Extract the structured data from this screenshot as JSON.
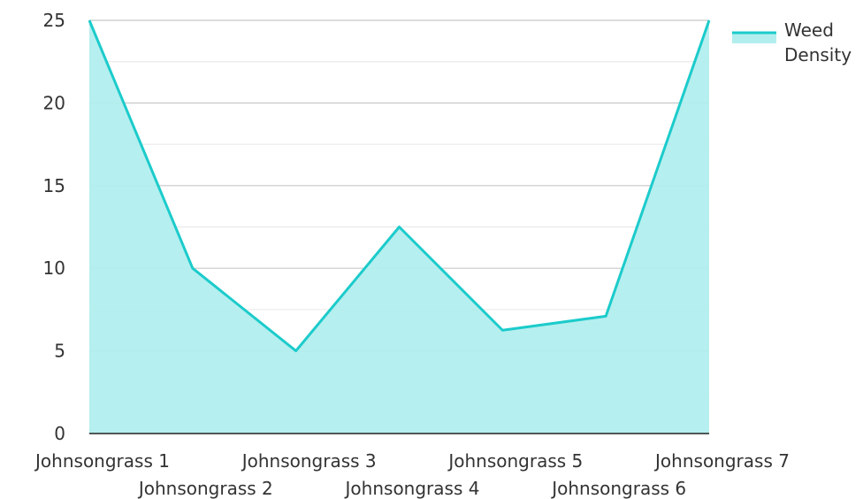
{
  "chart_data": {
    "type": "area",
    "categories": [
      "Johnsongrass 1",
      "Johnsongrass 2",
      "Johnsongrass 3",
      "Johnsongrass 4",
      "Johnsongrass 5",
      "Johnsongrass 6",
      "Johnsongrass 7"
    ],
    "series": [
      {
        "name": "Weed Density",
        "values": [
          25,
          10,
          5,
          12.5,
          6.25,
          7.1,
          25
        ],
        "line_color": "#1ccbcb",
        "fill_color": "#b2eeee"
      }
    ],
    "yticks": [
      0,
      5,
      10,
      15,
      20,
      25
    ],
    "ylim": [
      0,
      25
    ],
    "grid": true,
    "legend": {
      "position": "top-right",
      "lines": [
        "Weed",
        "Density"
      ]
    },
    "title": "",
    "xlabel": "",
    "ylabel": ""
  }
}
